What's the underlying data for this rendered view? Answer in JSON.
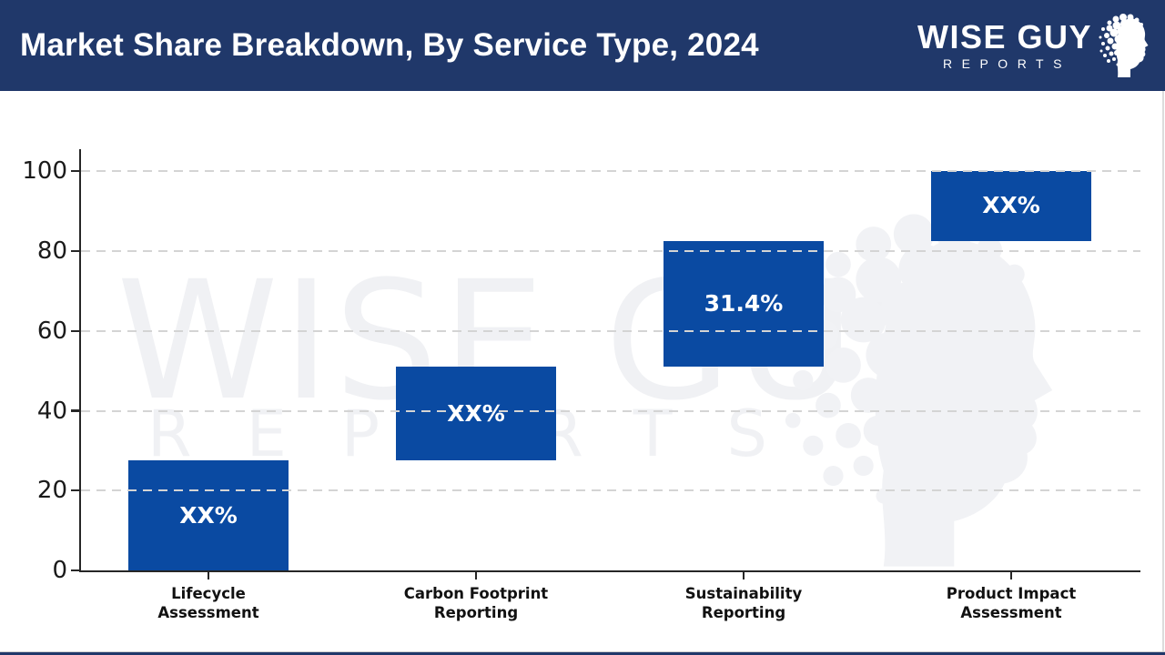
{
  "header": {
    "title": "Market Share Breakdown, By Service Type, 2024",
    "bg_color": "#20386a",
    "text_color": "#ffffff"
  },
  "logo": {
    "line1": "WISE GUY",
    "line2": "REPORTS"
  },
  "watermark": {
    "line1": "WISE GUY",
    "line2": "REPORTS",
    "color": "#f0f1f4"
  },
  "footer_strip_color": "#20386a",
  "chart_data": {
    "type": "bar",
    "variant": "waterfall",
    "title": "Market Share Breakdown, By Service Type, 2024",
    "categories": [
      "Lifecycle Assessment",
      "Carbon Footprint Reporting",
      "Sustainability Reporting",
      "Product Impact Assessment"
    ],
    "category_label_lines": [
      [
        "Lifecycle",
        "Assessment"
      ],
      [
        "Carbon Footprint",
        "Reporting"
      ],
      [
        "Sustainability",
        "Reporting"
      ],
      [
        "Product Impact",
        "Assessment"
      ]
    ],
    "segments": [
      {
        "category": "Lifecycle Assessment",
        "label": "XX%",
        "start": 0,
        "end": 27.5,
        "value": 27.5
      },
      {
        "category": "Carbon Footprint Reporting",
        "label": "XX%",
        "start": 27.5,
        "end": 51.0,
        "value": 23.5
      },
      {
        "category": "Sustainability Reporting",
        "label": "31.4%",
        "start": 51.0,
        "end": 82.4,
        "value": 31.4
      },
      {
        "category": "Product Impact Assessment",
        "label": "XX%",
        "start": 82.4,
        "end": 100.0,
        "value": 17.6
      }
    ],
    "ylim": [
      0,
      100
    ],
    "yticks": [
      0,
      20,
      40,
      60,
      80,
      100
    ],
    "xlabel": "",
    "ylabel": "",
    "grid": {
      "horizontal": true,
      "style": "dashed",
      "color": "#d4d4d4",
      "drawn_above_bars": true
    },
    "legend": "none",
    "bar_color": "#0a4aa2",
    "value_label_color": "#ffffff",
    "axis_color": "#262626"
  }
}
